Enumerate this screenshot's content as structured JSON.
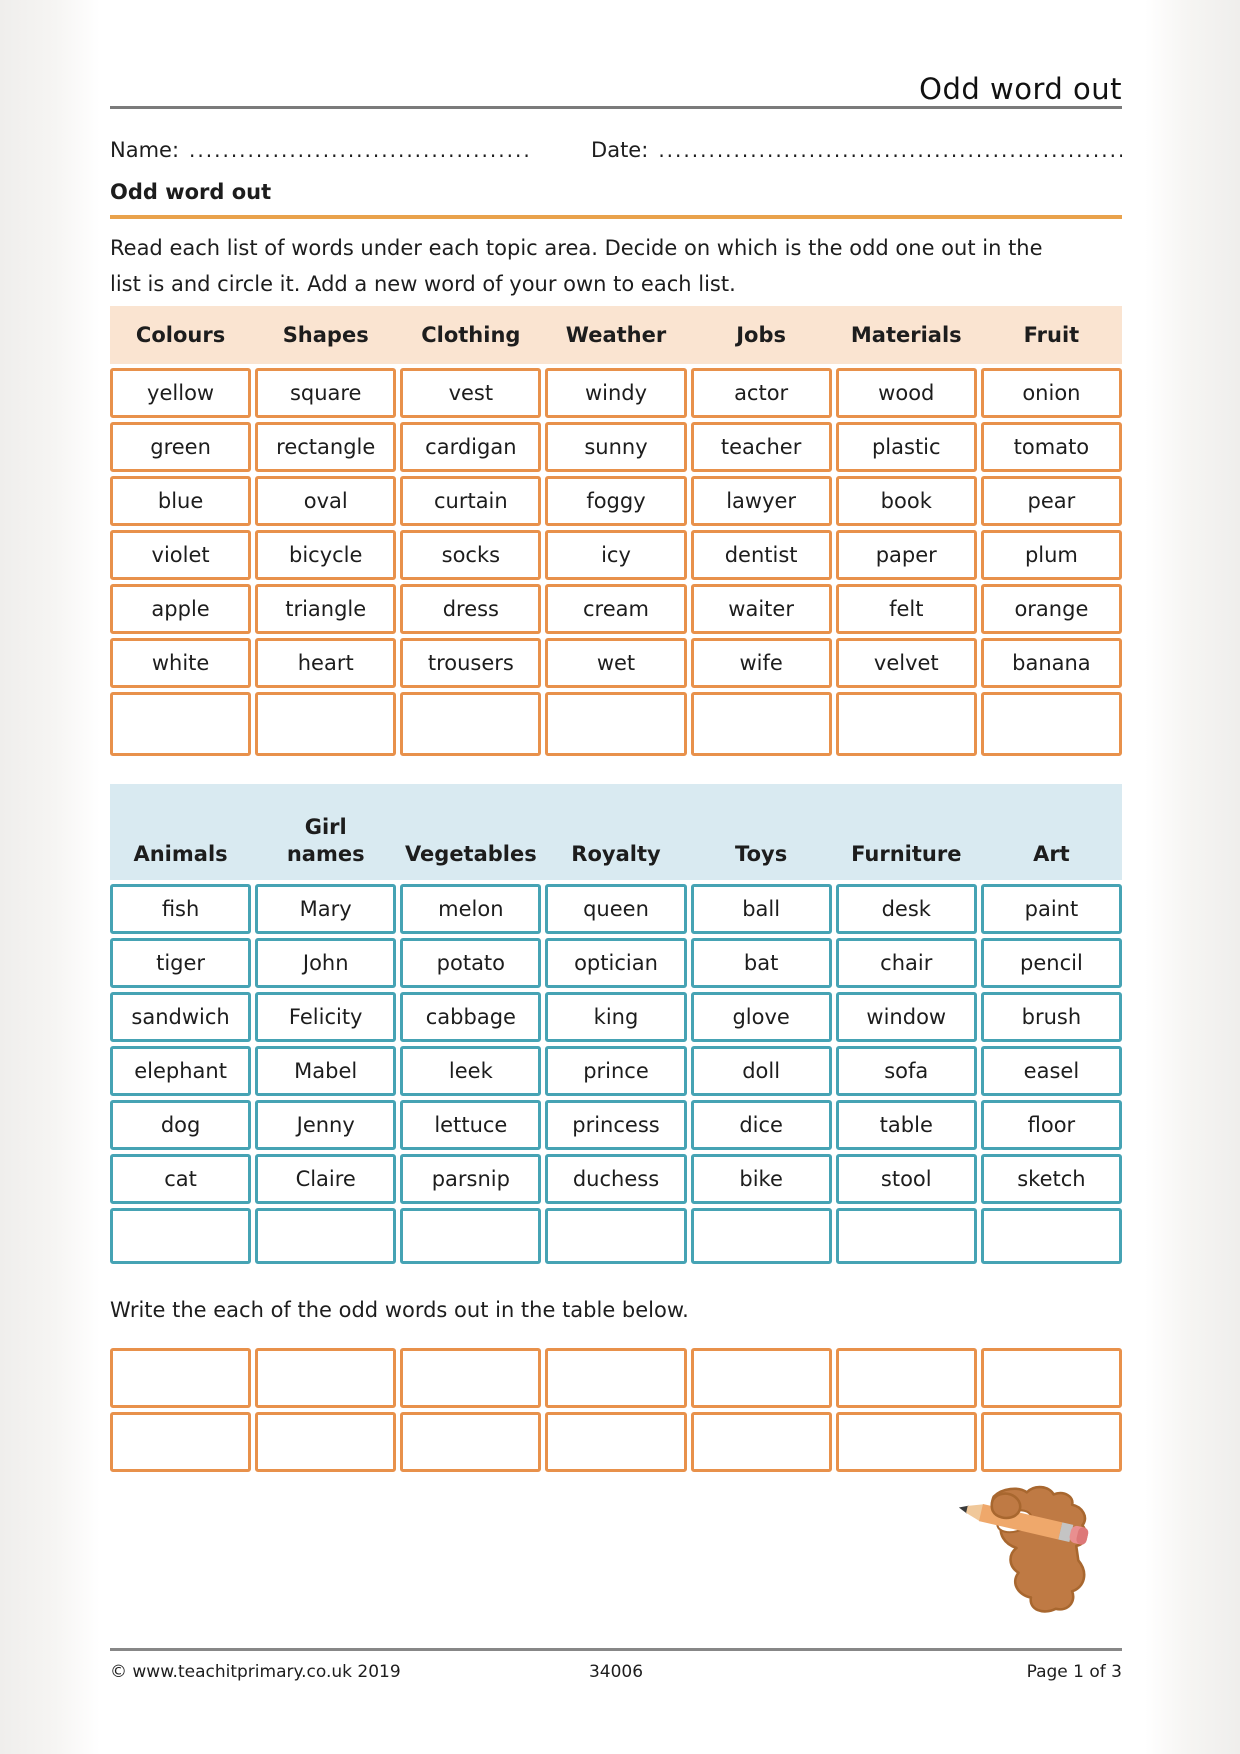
{
  "document": {
    "header": {
      "title": "Odd word out"
    },
    "name_line": {
      "name_label": "Name:",
      "name_dots": "............................................",
      "date_label": "Date:",
      "date_dots": "............................................................"
    },
    "section": {
      "heading": "Odd word out",
      "instruction_lines": [
        "Read each list of words under each topic area. Decide on which is the odd one out in the",
        "list is and circle it. Add a new word of your own to each list."
      ]
    },
    "write_prompt": "Write the each of the odd words out in the table below.",
    "footer": {
      "copyright": "© www.teachitprimary.co.uk 2019",
      "document_id": "34006",
      "page_number": "Page 1 of 3"
    }
  },
  "colors": {
    "rule_gray": "#7b7b7b",
    "rule_orange": "#E9A24C",
    "orange_border": "#E8914B",
    "peach_header_bg": "#FAE4D1",
    "teal_border": "#46A3B4",
    "blue_header_bg": "#D9EAF1"
  },
  "tables": [
    {
      "id": "topics-table-orange",
      "border_color": "#E8914B",
      "header_bg": "#FAE4D1",
      "headers": [
        "Colours",
        "Shapes",
        "Clothing",
        "Weather",
        "Jobs",
        "Materials",
        "Fruit"
      ],
      "rows": [
        [
          "yellow",
          "square",
          "vest",
          "windy",
          "actor",
          "wood",
          "onion"
        ],
        [
          "green",
          "rectangle",
          "cardigan",
          "sunny",
          "teacher",
          "plastic",
          "tomato"
        ],
        [
          "blue",
          "oval",
          "curtain",
          "foggy",
          "lawyer",
          "book",
          "pear"
        ],
        [
          "violet",
          "bicycle",
          "socks",
          "icy",
          "dentist",
          "paper",
          "plum"
        ],
        [
          "apple",
          "triangle",
          "dress",
          "cream",
          "waiter",
          "felt",
          "orange"
        ],
        [
          "white",
          "heart",
          "trousers",
          "wet",
          "wife",
          "velvet",
          "banana"
        ],
        [
          "",
          "",
          "",
          "",
          "",
          "",
          ""
        ]
      ]
    },
    {
      "id": "topics-table-teal",
      "border_color": "#46A3B4",
      "header_bg": "#D9EAF1",
      "headers": [
        "Animals",
        "Girl\nnames",
        "Vegetables",
        "Royalty",
        "Toys",
        "Furniture",
        "Art"
      ],
      "rows": [
        [
          "fish",
          "Mary",
          "melon",
          "queen",
          "ball",
          "desk",
          "paint"
        ],
        [
          "tiger",
          "John",
          "potato",
          "optician",
          "bat",
          "chair",
          "pencil"
        ],
        [
          "sandwich",
          "Felicity",
          "cabbage",
          "king",
          "glove",
          "window",
          "brush"
        ],
        [
          "elephant",
          "Mabel",
          "leek",
          "prince",
          "doll",
          "sofa",
          "easel"
        ],
        [
          "dog",
          "Jenny",
          "lettuce",
          "princess",
          "dice",
          "table",
          "floor"
        ],
        [
          "cat",
          "Claire",
          "parsnip",
          "duchess",
          "bike",
          "stool",
          "sketch"
        ],
        [
          "",
          "",
          "",
          "",
          "",
          "",
          ""
        ]
      ]
    },
    {
      "id": "answers-table-empty",
      "border_color": "#E8914B",
      "rows": [
        [
          "",
          "",
          "",
          "",
          "",
          "",
          ""
        ],
        [
          "",
          "",
          "",
          "",
          "",
          "",
          ""
        ]
      ]
    }
  ],
  "illustration": {
    "name": "hand-writing-with-pencil",
    "skin": "#BF7A44",
    "outline": "#A8672F",
    "pencil_body": "#EFA86B",
    "pencil_wood": "#F0C89A",
    "pencil_lead": "#3a3a3a",
    "ferrule": "#C4C4C4",
    "eraser": "#E98F8F",
    "eraser_shade": "#DD7878"
  }
}
